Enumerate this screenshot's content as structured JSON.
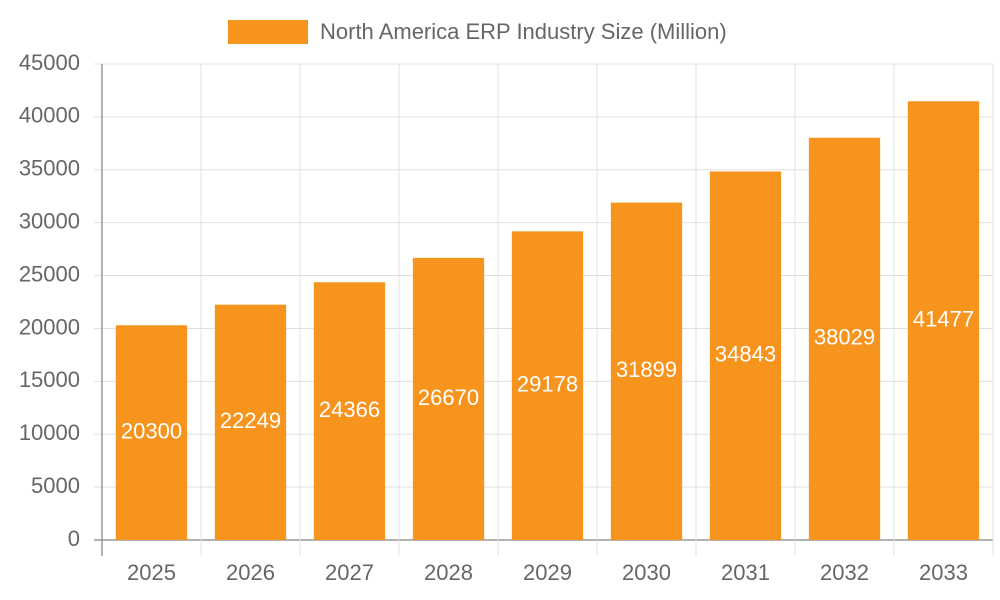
{
  "chart_data": {
    "type": "bar",
    "categories": [
      "2025",
      "2026",
      "2027",
      "2028",
      "2029",
      "2030",
      "2031",
      "2032",
      "2033"
    ],
    "series": [
      {
        "name": "North America ERP Industry Size (Million)",
        "color": "#f7941d",
        "values": [
          20300,
          22249,
          24366,
          26670,
          29178,
          31899,
          34843,
          38029,
          41477
        ]
      }
    ],
    "ylim": [
      0,
      45000
    ],
    "yticks": [
      0,
      5000,
      10000,
      15000,
      20000,
      25000,
      30000,
      35000,
      40000,
      45000
    ],
    "grid": true,
    "legend": "top",
    "value_labels_inside": true
  }
}
